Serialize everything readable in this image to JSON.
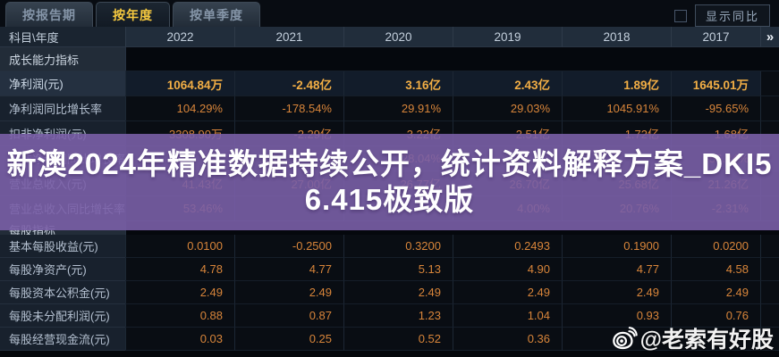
{
  "tabs": {
    "report_period": "按报告期",
    "annual": "按年度",
    "quarterly": "按单季度"
  },
  "yoy_toggle": {
    "label": "显示同比",
    "checked": false
  },
  "table": {
    "corner_label": "科目\\年度",
    "years": [
      "2022",
      "2021",
      "2020",
      "2019",
      "2018",
      "2017"
    ],
    "more_indicator": "»",
    "sections": [
      {
        "title": "成长能力指标",
        "rows": [
          {
            "label": "净利润(元)",
            "highlight": true,
            "values": [
              "1064.84万",
              "-2.48亿",
              "3.16亿",
              "2.43亿",
              "1.89亿",
              "1645.01万"
            ]
          },
          {
            "label": "净利润同比增长率",
            "values": [
              "104.29%",
              "-178.54%",
              "29.91%",
              "29.03%",
              "1045.91%",
              "-95.65%"
            ]
          },
          {
            "label": "扣非净利润(元)",
            "values": [
              "3308.90万",
              "-2.29亿",
              "3.22亿",
              "2.51亿",
              "1.72亿",
              "1.68亿"
            ]
          },
          {
            "label": "扣非净利润同比增长率",
            "values": [
              "",
              "",
              "28.04%",
              "",
              "",
              "-56.34%"
            ]
          },
          {
            "label": "营业总收入(元)",
            "values": [
              "41.43亿",
              "27.00亿",
              "26.77亿",
              "26.70亿",
              "25.68亿",
              "21.26亿"
            ]
          },
          {
            "label": "营业总收入同比增长率",
            "values": [
              "53.46%",
              "",
              "",
              "4.00%",
              "20.76%",
              "-2.31%"
            ]
          }
        ]
      },
      {
        "title": "每股指标",
        "rows": [
          {
            "label": "基本每股收益(元)",
            "values": [
              "0.0100",
              "-0.2500",
              "0.3200",
              "0.2493",
              "0.1900",
              "0.0200"
            ]
          },
          {
            "label": "每股净资产(元)",
            "values": [
              "4.78",
              "4.77",
              "5.13",
              "4.90",
              "4.77",
              "4.58"
            ]
          },
          {
            "label": "每股资本公积金(元)",
            "values": [
              "2.49",
              "2.49",
              "2.49",
              "2.49",
              "2.49",
              "2.49"
            ]
          },
          {
            "label": "每股未分配利润(元)",
            "values": [
              "0.88",
              "0.87",
              "1.23",
              "1.04",
              "0.93",
              "0.76"
            ]
          },
          {
            "label": "每股经营现金流(元)",
            "values": [
              "0.03",
              "0.25",
              "0.52",
              "0.36",
              "",
              ""
            ]
          }
        ]
      }
    ]
  },
  "overlay": {
    "line1": "新澳2024年精准数据持续公开，统计资料解释方案_DKI5",
    "line2": "6.415极致版"
  },
  "watermark": {
    "handle": "@老索有好股"
  },
  "colors": {
    "active_tab_text": "#f6c93f",
    "value_orange": "#d8853a",
    "highlight_gold": "#f2ae45",
    "overlay_purple": "#7a5fa7"
  }
}
